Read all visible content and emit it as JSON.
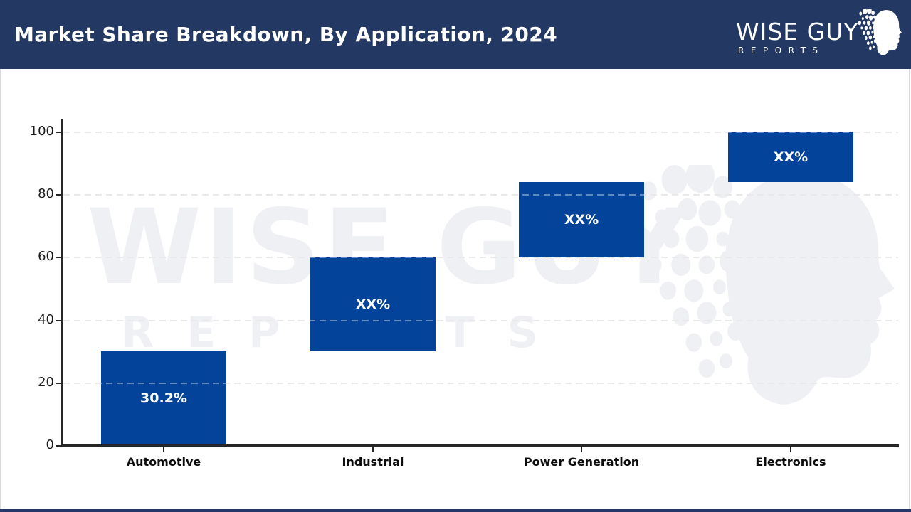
{
  "header": {
    "title": "Market Share Breakdown, By Application, 2024",
    "logo": {
      "line1": "WISE GUY",
      "line2": "REPORTS"
    }
  },
  "watermark": {
    "line1": "WISE GUY",
    "line2": "REPORTS"
  },
  "chart_data": {
    "type": "bar",
    "subtype": "waterfall",
    "title": "Market Share Breakdown, By Application, 2024",
    "categories": [
      "Automotive",
      "Industrial",
      "Power Generation",
      "Electronics"
    ],
    "segments": [
      {
        "category": "Automotive",
        "start": 0,
        "end": 30.2,
        "label": "30.2%"
      },
      {
        "category": "Industrial",
        "start": 30.2,
        "end": 60,
        "label": "XX%"
      },
      {
        "category": "Power Generation",
        "start": 60,
        "end": 84.1,
        "label": "XX%"
      },
      {
        "category": "Electronics",
        "start": 84.1,
        "end": 100,
        "label": "XX%"
      }
    ],
    "ylim": [
      0,
      100
    ],
    "yticks": [
      0,
      20,
      40,
      60,
      80,
      100
    ],
    "xlabel": "",
    "ylabel": "",
    "grid": "horizontal dashed",
    "legend": "none",
    "bar_color": "#03439a",
    "value_label_color": "#ffffff"
  },
  "colors": {
    "header_bg": "#233862",
    "bar": "#03439a",
    "grid": "#dcdcdc",
    "axis": "#262626",
    "watermark": "#eff0f3",
    "side_border": "#d9dadc",
    "bottom_rule": "#233862"
  }
}
